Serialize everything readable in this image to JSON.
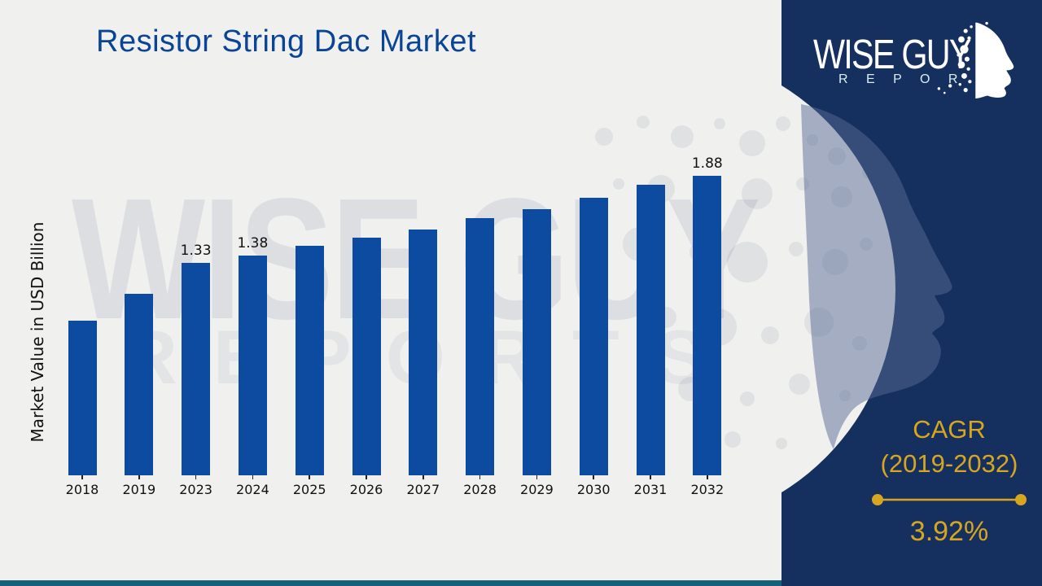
{
  "page": {
    "background": "#f0f0ef"
  },
  "title": {
    "text": "Resistor String Dac Market",
    "color": "#0a4496"
  },
  "watermark": {
    "line1": "WISE GUY",
    "line2": "R E P O R T S"
  },
  "chart_data": {
    "type": "bar",
    "categories": [
      "2018",
      "2019",
      "2023",
      "2024",
      "2025",
      "2026",
      "2027",
      "2028",
      "2029",
      "2030",
      "2031",
      "2032"
    ],
    "values": [
      0.97,
      1.14,
      1.33,
      1.38,
      1.44,
      1.49,
      1.54,
      1.61,
      1.67,
      1.74,
      1.82,
      1.88
    ],
    "data_labels": {
      "2023": "1.33",
      "2024": "1.38",
      "2032": "1.88"
    },
    "title": "Resistor String Dac Market",
    "xlabel": "",
    "ylabel": "Market Value in USD Billion",
    "ylim": [
      0,
      2.1
    ],
    "bar_color": "#0d4ba1",
    "grid": false,
    "legend": false
  },
  "side_panel": {
    "background": "#15305e",
    "logo": {
      "line1": "WISE GUY",
      "line2": "R E P O R T S"
    },
    "cagr": {
      "label": "CAGR",
      "period": "(2019-2032)",
      "value": "3.92%",
      "accent_color": "#d8a61e"
    }
  }
}
